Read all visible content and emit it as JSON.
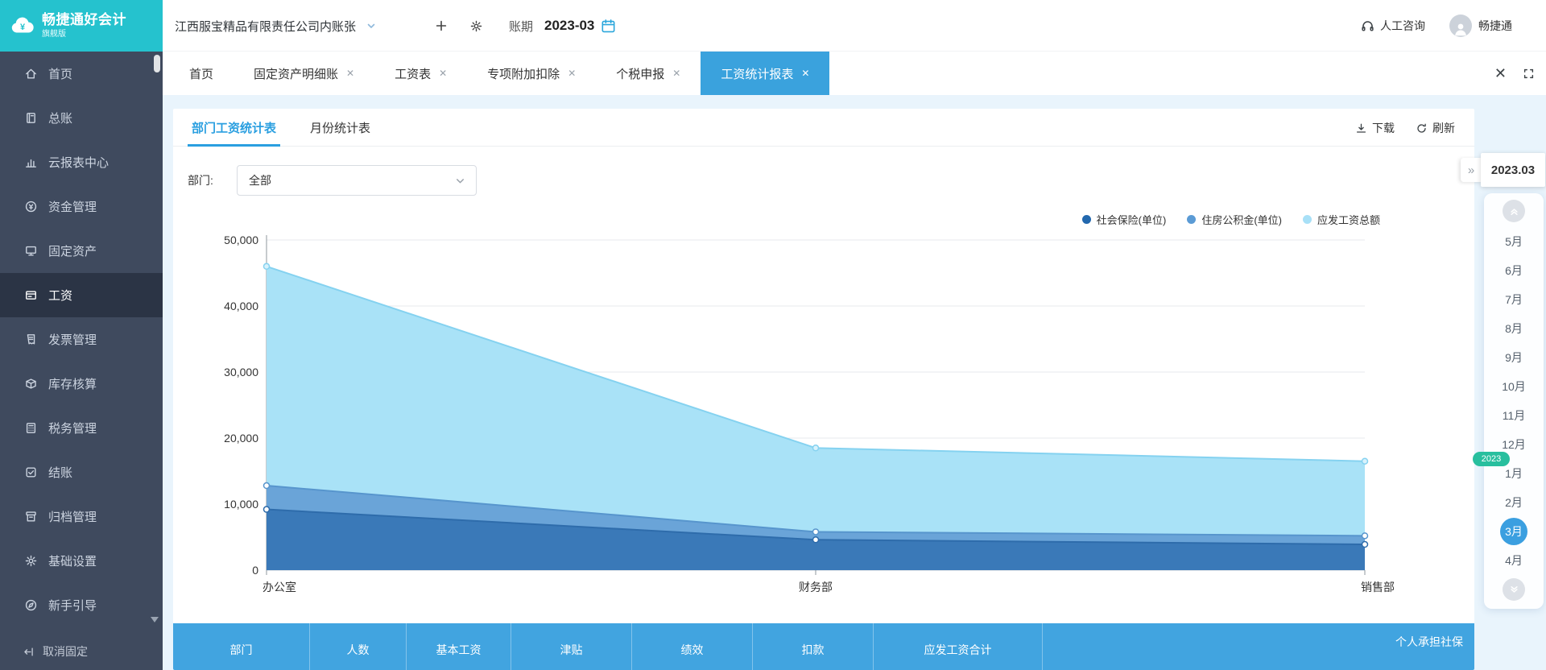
{
  "topbar": {
    "logo_title": "畅捷通好会计",
    "logo_badge": "旗舰版",
    "company": "江西服宝精品有限责任公司内账张",
    "period_label": "账期",
    "period_value": "2023-03",
    "support_label": "人工咨询",
    "user_label": "畅捷通"
  },
  "sidebar": {
    "active_index": 5,
    "unpin_label": "取消固定",
    "items": [
      {
        "label": "首页",
        "icon": "home"
      },
      {
        "label": "总账",
        "icon": "ledger"
      },
      {
        "label": "云报表中心",
        "icon": "report"
      },
      {
        "label": "资金管理",
        "icon": "fund"
      },
      {
        "label": "固定资产",
        "icon": "asset"
      },
      {
        "label": "工资",
        "icon": "salary"
      },
      {
        "label": "发票管理",
        "icon": "invoice"
      },
      {
        "label": "库存核算",
        "icon": "inventory"
      },
      {
        "label": "税务管理",
        "icon": "tax"
      },
      {
        "label": "结账",
        "icon": "closing"
      },
      {
        "label": "归档管理",
        "icon": "archive"
      },
      {
        "label": "基础设置",
        "icon": "settings"
      },
      {
        "label": "新手引导",
        "icon": "guide"
      }
    ]
  },
  "tabbar": {
    "tabs": [
      {
        "label": "首页",
        "closable": false,
        "active": false
      },
      {
        "label": "固定资产明细账",
        "closable": true,
        "active": false
      },
      {
        "label": "工资表",
        "closable": true,
        "active": false
      },
      {
        "label": "专项附加扣除",
        "closable": true,
        "active": false
      },
      {
        "label": "个税申报",
        "closable": true,
        "active": false
      },
      {
        "label": "工资统计报表",
        "closable": true,
        "active": true
      }
    ]
  },
  "report": {
    "subtabs": [
      {
        "label": "部门工资统计表",
        "active": true
      },
      {
        "label": "月份统计表",
        "active": false
      }
    ],
    "download_label": "下载",
    "refresh_label": "刷新",
    "filter_label": "部门:",
    "filter_value": "全部"
  },
  "chart_data": {
    "type": "area",
    "categories": [
      "办公室",
      "财务部",
      "销售部"
    ],
    "series": [
      {
        "name": "社会保险(单位)",
        "color": "#2268ae",
        "fill": "#3a79b8",
        "stroke": "#2e6cab",
        "marker": "#ffffff",
        "values": [
          9200,
          4600,
          3900
        ]
      },
      {
        "name": "住房公积金(单位)",
        "color": "#5b9bd5",
        "fill": "#6aa4d8",
        "stroke": "#5795cd",
        "marker": "#ffffff",
        "values": [
          12800,
          5800,
          5200
        ]
      },
      {
        "name": "应发工资总额",
        "color": "#a8e0f7",
        "fill": "#a9e2f7",
        "stroke": "#85d2f0",
        "marker": "#d8f2fc",
        "values": [
          46000,
          18500,
          16500
        ]
      }
    ],
    "ylim": [
      0,
      50000
    ],
    "ytick_step": 10000,
    "grid": true,
    "legend_position": "top-right"
  },
  "table": {
    "headers": [
      "部门",
      "人数",
      "基本工资",
      "津贴",
      "绩效",
      "扣款",
      "应发工资合计"
    ],
    "group_header": "个人承担社保"
  },
  "month_panel": {
    "current_period": "2023.03",
    "year_badge": "2023",
    "active_month": "3月",
    "months": [
      "5月",
      "6月",
      "7月",
      "8月",
      "9月",
      "10月",
      "11月",
      "12月",
      "1月",
      "2月",
      "3月",
      "4月"
    ]
  },
  "colors": {
    "brand_teal": "#25c2ce",
    "active_blue": "#3aa2dd",
    "sidebar_bg": "#3f4a5e",
    "sidebar_active_bg": "#2b3445",
    "content_bg": "#e9f4fc",
    "table_header_bg": "#41a4e0",
    "year_badge_bg": "#28bf9e"
  }
}
